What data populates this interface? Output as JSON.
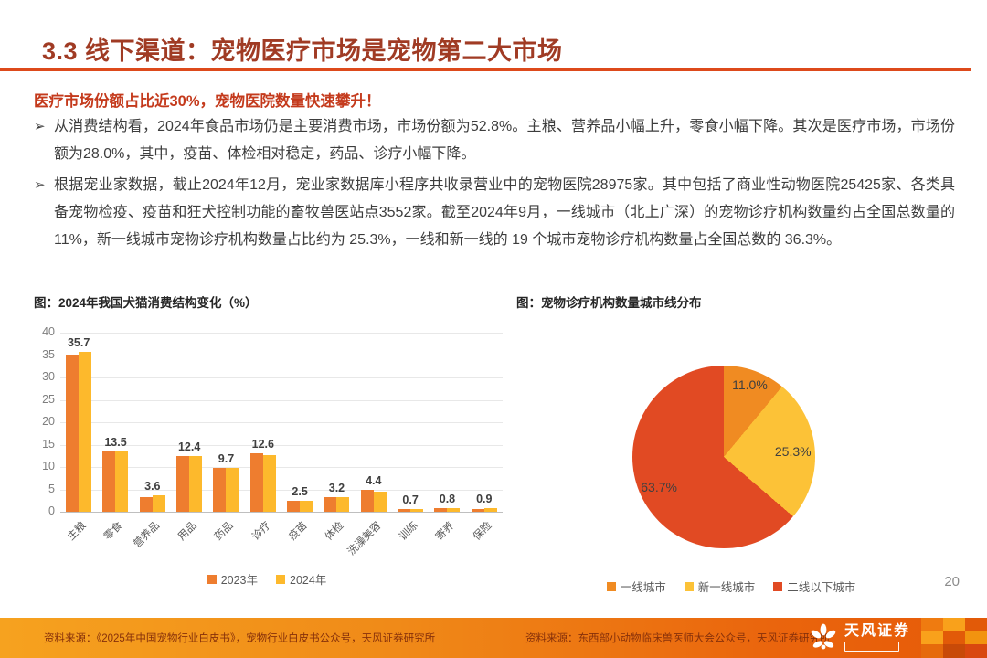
{
  "header": {
    "title": "3.3 线下渠道：宠物医疗市场是宠物第二大市场"
  },
  "intro": {
    "subtitle": "医疗市场份额占比近30%，宠物医院数量快速攀升！",
    "bullet_marker": "➢",
    "bullets": [
      "从消费结构看，2024年食品市场仍是主要消费市场，市场份额为52.8%。主粮、营养品小幅上升，零食小幅下降。其次是医疗市场，市场份额为28.0%，其中，疫苗、体检相对稳定，药品、诊疗小幅下降。",
      "根据宠业家数据，截止2024年12月，宠业家数据库小程序共收录营业中的宠物医院28975家。其中包括了商业性动物医院25425家、各类具备宠物检疫、疫苗和狂犬控制功能的畜牧兽医站点3552家。截至2024年9月，一线城市（北上广深）的宠物诊疗机构数量约占全国总数量的 11%，新一线城市宠物诊疗机构数量占比约为 25.3%，一线和新一线的 19 个城市宠物诊疗机构数量占全国总数的 36.3%。"
    ]
  },
  "chart_data": [
    {
      "type": "bar",
      "title": "图：2024年我国犬猫消费结构变化（%）",
      "categories": [
        "主粮",
        "零食",
        "营养品",
        "用品",
        "药品",
        "诊疗",
        "疫苗",
        "体检",
        "洗澡美容",
        "训练",
        "寄养",
        "保险"
      ],
      "series": [
        {
          "name": "2023年",
          "color": "#ee7d2f",
          "values": [
            35.2,
            13.5,
            3.3,
            12.4,
            9.7,
            13.0,
            2.5,
            3.2,
            4.8,
            0.7,
            0.8,
            0.6
          ]
        },
        {
          "name": "2024年",
          "color": "#fdb92c",
          "values": [
            35.7,
            13.5,
            3.6,
            12.4,
            9.7,
            12.6,
            2.5,
            3.2,
            4.4,
            0.7,
            0.8,
            0.9
          ]
        }
      ],
      "data_labels": [
        "35.7",
        "13.5",
        "3.6",
        "12.4",
        "9.7",
        "12.6",
        "2.5",
        "3.2",
        "4.4",
        "0.7",
        "0.8",
        "0.9"
      ],
      "ylabel": "",
      "xlabel": "",
      "ylim": [
        0,
        40
      ],
      "ytick_step": 5,
      "grid": true,
      "legend_position": "bottom"
    },
    {
      "type": "pie",
      "title": "图：宠物诊疗机构数量城市线分布",
      "labels": [
        "一线城市",
        "新一线城市",
        "二线以下城市"
      ],
      "values": [
        11.0,
        25.3,
        63.7
      ],
      "display_labels": [
        "11.0%",
        "25.3%",
        "63.7%"
      ],
      "colors": [
        "#f08b22",
        "#fcc237",
        "#e14a23"
      ],
      "start_angle_deg": 0,
      "direction": "clockwise",
      "legend_position": "bottom"
    }
  ],
  "footer": {
    "page_number": "20",
    "source_left": "资料来源：《2025年中国宠物行业白皮书》，宠物行业白皮书公众号，天风证券研究所",
    "source_right": "资料来源：东西部小动物临床兽医师大会公众号，天风证券研究所",
    "logo_text": "天风证券"
  },
  "colors": {
    "title": "#a03b24",
    "subtitle": "#c43a1c",
    "divider": "#dd4a1b",
    "footer_text": "#86300a"
  }
}
